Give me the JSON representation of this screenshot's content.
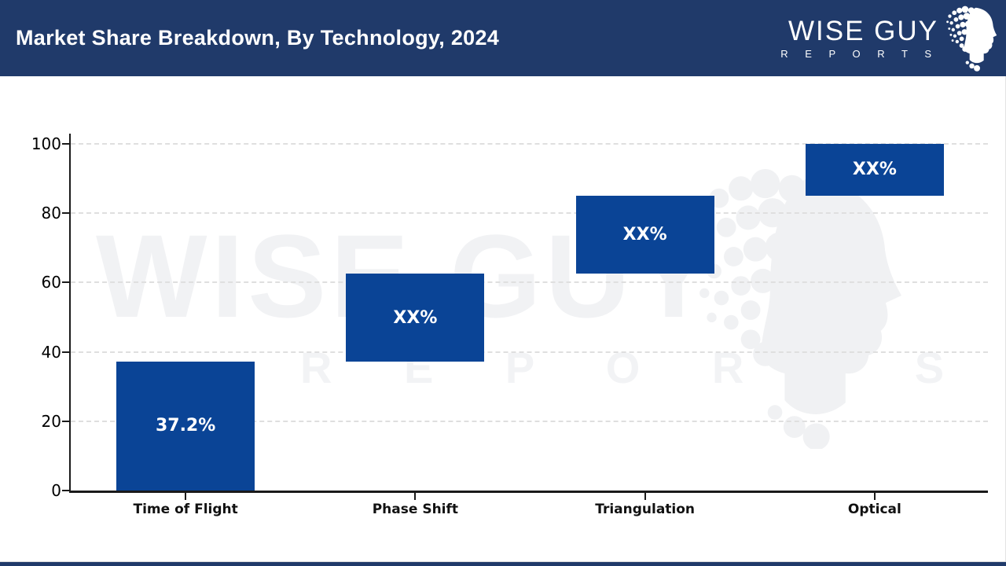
{
  "header": {
    "title": "Market Share Breakdown, By Technology, 2024",
    "brand": {
      "name": "WISE GUY",
      "sub": "R E P O R T S"
    }
  },
  "watermark": {
    "name": "WISE GUY",
    "sub": "R E P O R T S"
  },
  "chart_data": {
    "type": "bar",
    "subtype": "floating-segment-waterfall",
    "title": "Market Share Breakdown, By Technology, 2024",
    "categories": [
      "Time of Flight",
      "Phase Shift",
      "Triangulation",
      "Optical"
    ],
    "series": [
      {
        "name": "Market Share",
        "segments": [
          {
            "category": "Time of Flight",
            "start": 0,
            "end": 37.2,
            "label": "37.2%"
          },
          {
            "category": "Phase Shift",
            "start": 37.2,
            "end": 62.5,
            "label": "XX%"
          },
          {
            "category": "Triangulation",
            "start": 62.5,
            "end": 85.0,
            "label": "XX%"
          },
          {
            "category": "Optical",
            "start": 85.0,
            "end": 100.0,
            "label": "XX%"
          }
        ]
      }
    ],
    "xlabel": "",
    "ylabel": "",
    "ylim": [
      0,
      103.6
    ],
    "yticks": [
      0,
      20,
      40,
      60,
      80,
      100
    ],
    "grid": "horizontal-dashed",
    "legend": "none",
    "colors": {
      "bar": "#0a4496",
      "bar_label": "#ffffff",
      "grid": "#dfdfdf",
      "axis": "#1a1a1a",
      "header_bg": "#203a6a",
      "watermark": "#f1f2f4"
    }
  }
}
